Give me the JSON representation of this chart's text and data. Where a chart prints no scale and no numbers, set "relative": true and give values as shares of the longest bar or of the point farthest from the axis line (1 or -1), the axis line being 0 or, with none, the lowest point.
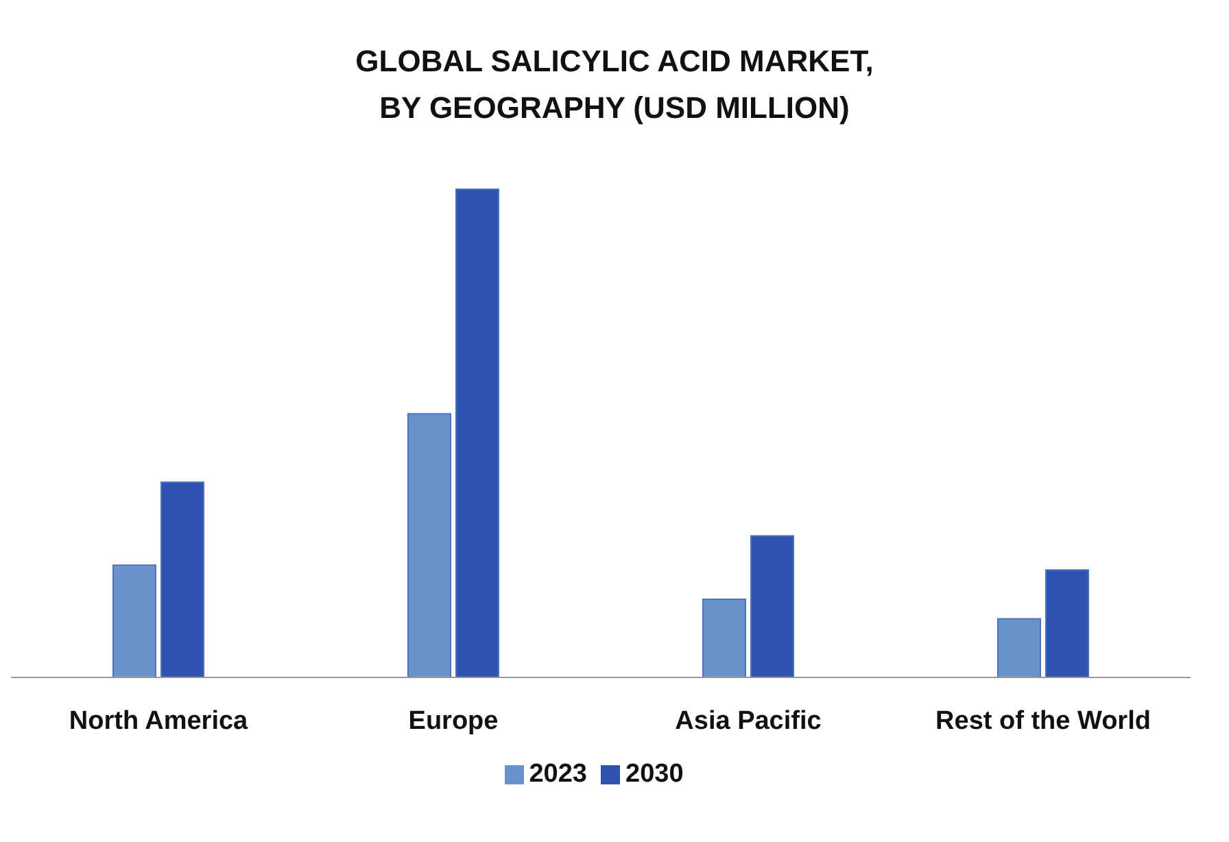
{
  "chart_data": {
    "type": "bar",
    "title": "GLOBAL SALICYLIC ACID MARKET, BY GEOGRAPHY (USD MILLION)",
    "categories": [
      "North America",
      "Europe",
      "Asia Pacific",
      "Rest of the World"
    ],
    "relative": true,
    "legend": "bottom",
    "series": [
      {
        "name": "2023",
        "color": "#6a93cc",
        "values": [
          0.23,
          0.54,
          0.16,
          0.12
        ]
      },
      {
        "name": "2030",
        "color": "#2f54b0",
        "values": [
          0.4,
          1,
          0.29,
          0.22
        ]
      }
    ]
  }
}
